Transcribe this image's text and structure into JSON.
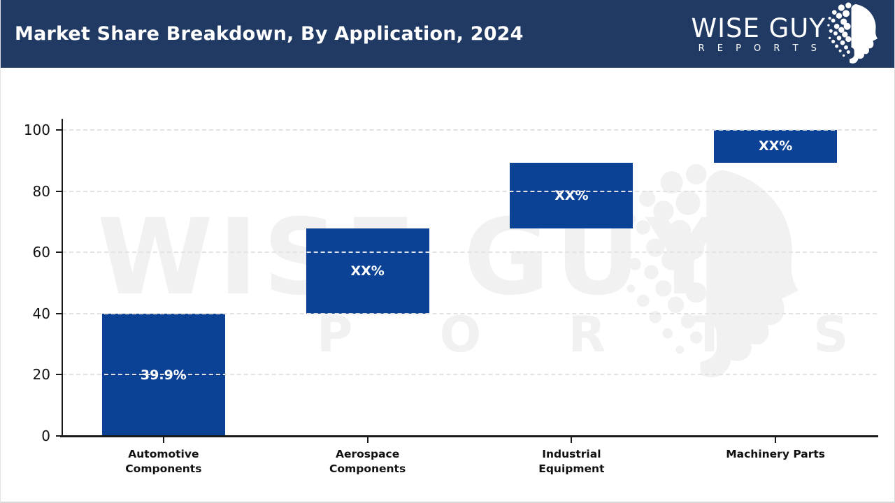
{
  "header": {
    "title": "Market Share Breakdown, By Application, 2024",
    "logo": {
      "wordmark": "WISE GUY",
      "subtext": "R E P O R T S",
      "icon": "wiseguy-head"
    }
  },
  "watermark": {
    "wordmark": "WISE GUY",
    "subtext": "P O R T S"
  },
  "chart_data": {
    "type": "bar",
    "subtype": "waterfall-floating-segments",
    "title": "Market Share Breakdown, By Application, 2024",
    "categories": [
      "Automotive\nComponents",
      "Aerospace\nComponents",
      "Industrial\nEquipment",
      "Machinery Parts"
    ],
    "segments": [
      {
        "category": "Automotive Components",
        "start": 0,
        "end": 39.9,
        "label": "39.9%"
      },
      {
        "category": "Aerospace Components",
        "start": 39.9,
        "end": 67.9,
        "label": "XX%"
      },
      {
        "category": "Industrial Equipment",
        "start": 67.9,
        "end": 89.3,
        "label": "XX%"
      },
      {
        "category": "Machinery Parts",
        "start": 89.3,
        "end": 100,
        "label": "XX%"
      }
    ],
    "xlabel": "",
    "ylabel": "",
    "ylim": [
      0,
      100
    ],
    "yticks": [
      0,
      20,
      40,
      60,
      80,
      100
    ],
    "grid": "horizontal-dashed",
    "legend": "none",
    "colors": {
      "bar": "#0b4296",
      "bar_label": "#ffffff",
      "grid": "#e2e2e2",
      "axis": "#1a1a1a",
      "tick_label": "#111111",
      "header_bg": "#213a64",
      "header_text": "#ffffff",
      "watermark": "#f1f1f1",
      "background": "#ffffff"
    }
  }
}
